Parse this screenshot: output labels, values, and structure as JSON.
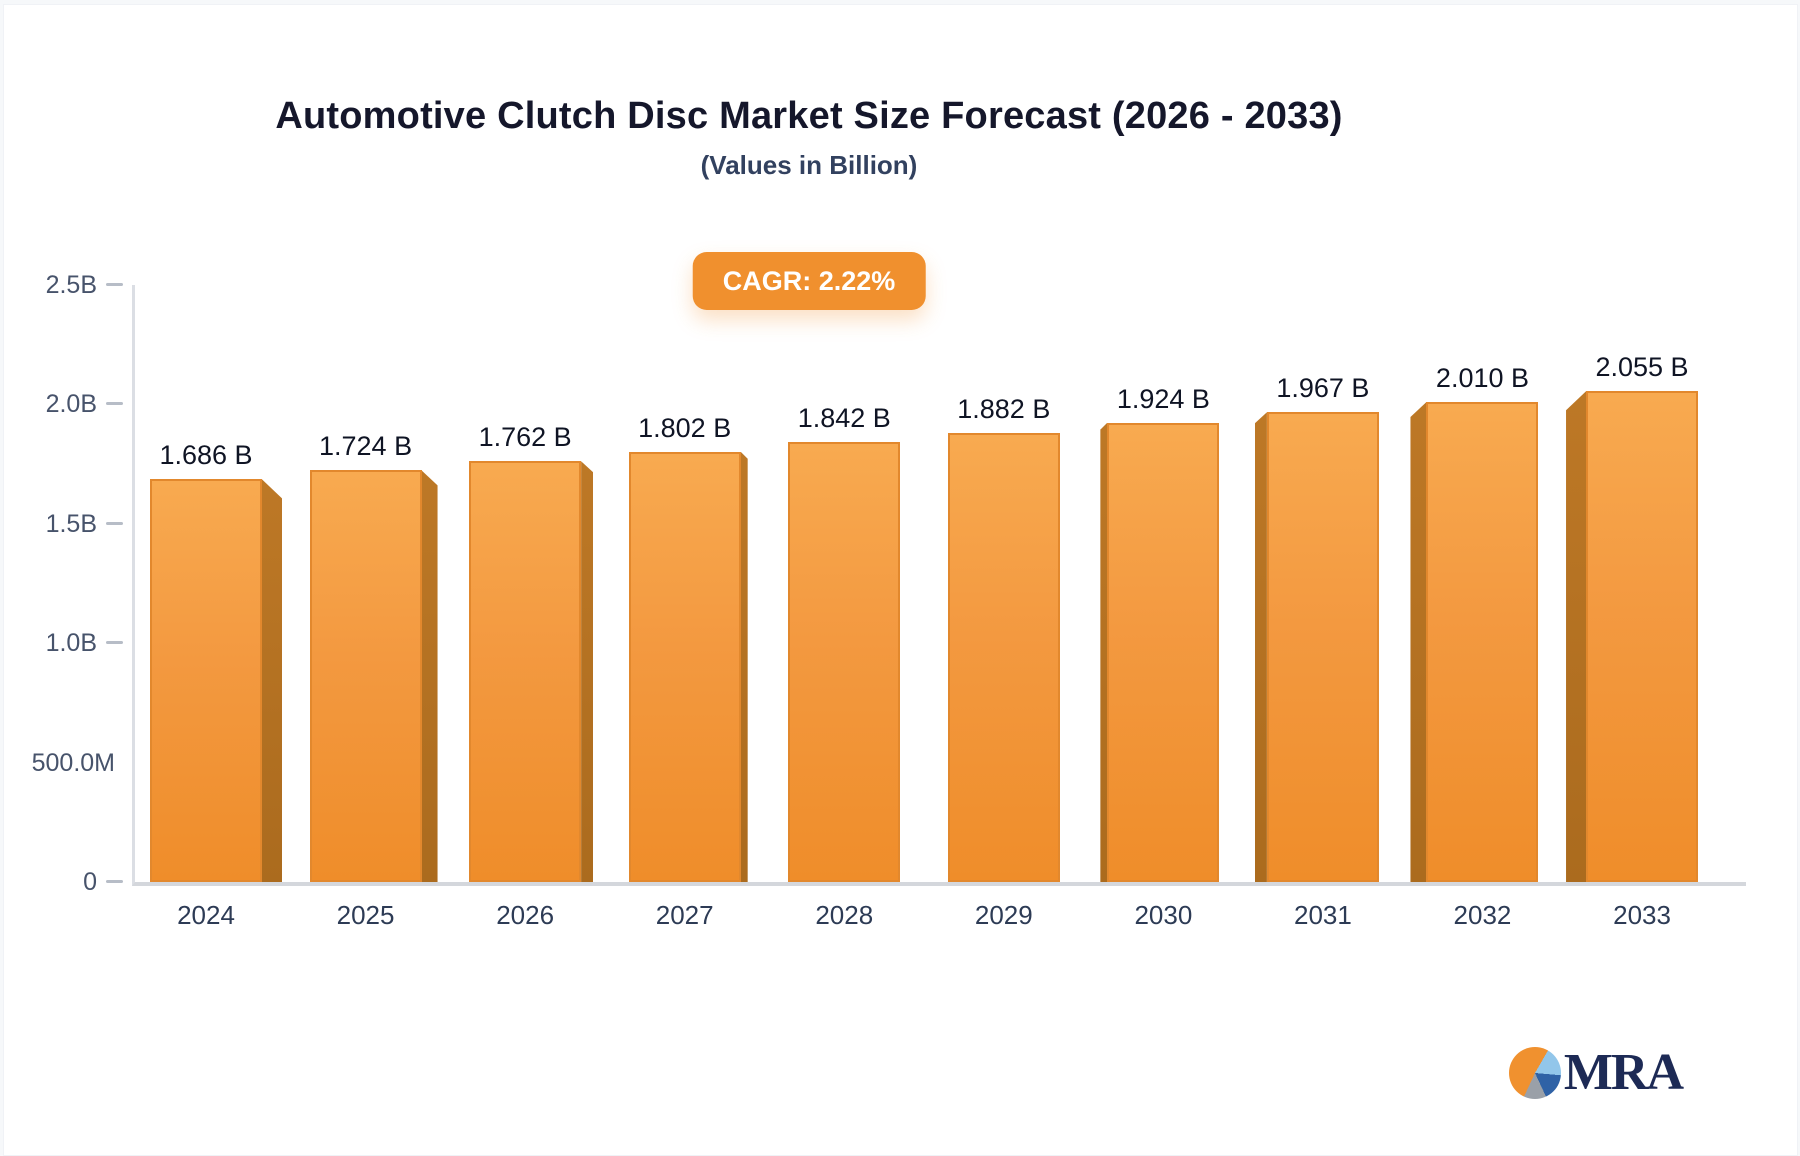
{
  "header": {
    "title": "Automotive Clutch Disc Market Size Forecast (2026 - 2033)",
    "subtitle": "(Values in Billion)",
    "cagr_badge": "CAGR: 2.22%"
  },
  "chart_data": {
    "type": "bar",
    "title": "Automotive Clutch Disc Market Size Forecast (2026 - 2033)",
    "subtitle": "(Values in Billion)",
    "annotation": "CAGR: 2.22%",
    "categories": [
      "2024",
      "2025",
      "2026",
      "2027",
      "2028",
      "2029",
      "2030",
      "2031",
      "2032",
      "2033"
    ],
    "values": [
      1.686,
      1.724,
      1.762,
      1.802,
      1.842,
      1.882,
      1.924,
      1.967,
      2.01,
      2.055
    ],
    "value_labels": [
      "1.686 B",
      "1.724 B",
      "1.762 B",
      "1.802 B",
      "1.842 B",
      "1.882 B",
      "1.924 B",
      "1.967 B",
      "2.010 B",
      "2.055 B"
    ],
    "unit": "Billion",
    "ylim": [
      0,
      2.5
    ],
    "y_ticks": [
      {
        "label": "2.5B",
        "value": 2.5,
        "dash": true
      },
      {
        "label": "2.0B",
        "value": 2.0,
        "dash": true
      },
      {
        "label": "1.5B",
        "value": 1.5,
        "dash": true
      },
      {
        "label": "1.0B",
        "value": 1.0,
        "dash": true
      },
      {
        "label": "500.0M",
        "value": 0.5,
        "dash": false
      },
      {
        "label": "0",
        "value": 0,
        "dash": true
      }
    ],
    "grid": false,
    "legend": false,
    "bar_style": "3d",
    "colors": {
      "bar_top": "#f8aa50",
      "bar_bottom": "#ef8d2a",
      "bar_side": "#b57122",
      "badge_bg": "#f0902e",
      "badge_text": "#ffffff",
      "axis": "#d4d7dc",
      "title_text": "#15172b",
      "subtitle_text": "#32415f"
    }
  },
  "logo": {
    "text": "MRA",
    "icon": "pie-chart"
  }
}
